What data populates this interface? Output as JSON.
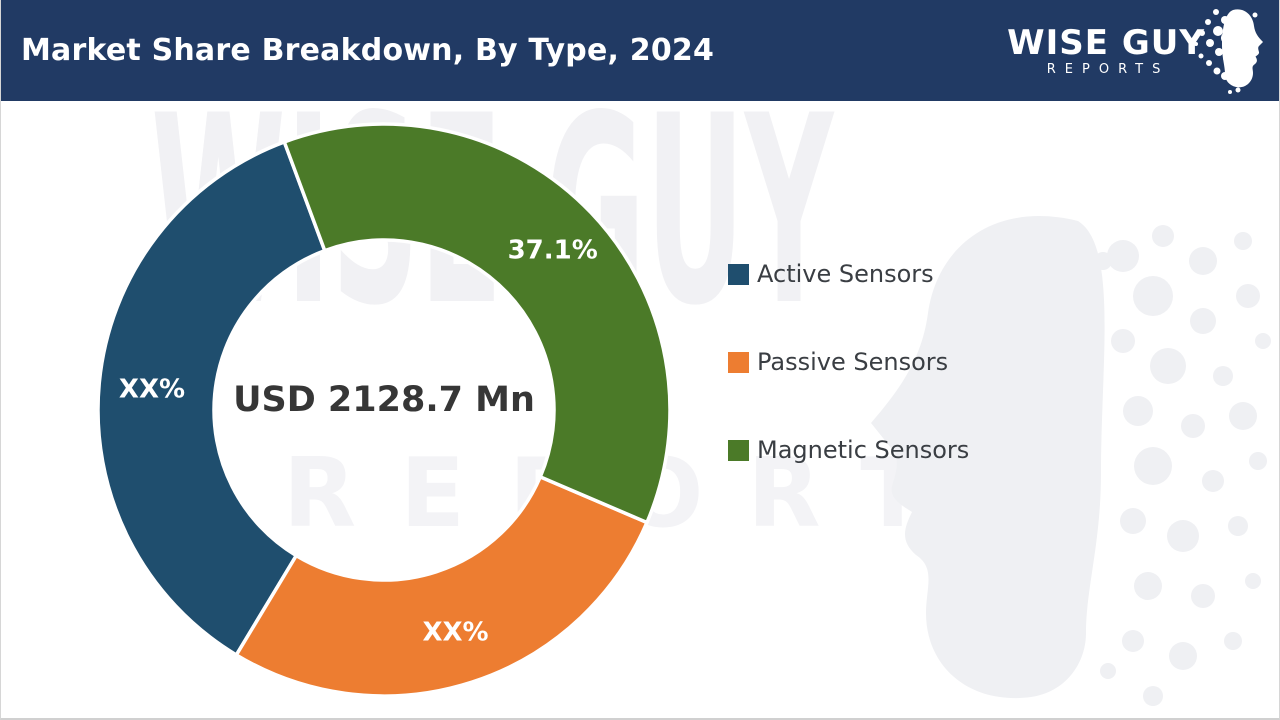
{
  "header": {
    "title": "Market Share Breakdown, By Type, 2024",
    "logo": {
      "line1": "WISE GUY",
      "line2": "REPORTS"
    },
    "background_color": "#213a64"
  },
  "chart_data": {
    "type": "pie",
    "subtype": "donut",
    "title": "Market Share Breakdown, By Type, 2024",
    "center_label": "USD 2128.7 Mn",
    "legend_position": "right",
    "start_angle_deg": 110.4,
    "direction": "counterclockwise",
    "donut_hole_ratio": 0.59,
    "gap_color": "#ffffff",
    "segments": [
      {
        "label": "Active Sensors",
        "display_value": "XX%",
        "arc_pct": 35.7,
        "color": "#1f4e6e"
      },
      {
        "label": "Passive Sensors",
        "display_value": "XX%",
        "arc_pct": 27.2,
        "color": "#ed7d31"
      },
      {
        "label": "Magnetic Sensors",
        "display_value": "37.1%",
        "arc_pct": 37.1,
        "color": "#4b7a28"
      }
    ]
  },
  "watermark": {
    "line1": "WISE GUY",
    "line2": "REPORTS"
  }
}
